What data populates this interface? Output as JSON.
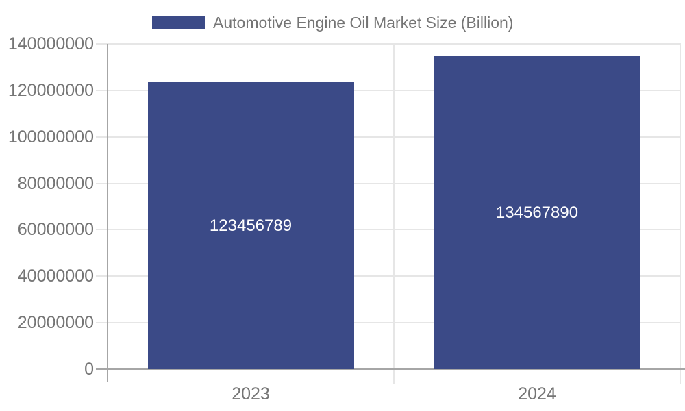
{
  "chart_data": {
    "type": "bar",
    "title": "",
    "legend": {
      "position": "top",
      "label": "Automotive Engine Oil Market Size (Billion)"
    },
    "categories": [
      "2023",
      "2024"
    ],
    "series": [
      {
        "name": "Automotive Engine Oil Market Size (Billion)",
        "values": [
          123456789,
          134567890
        ],
        "color": "#3b4a87"
      }
    ],
    "data_labels": [
      "123456789",
      "134567890"
    ],
    "x_axis": {
      "tick_labels": [
        "2023",
        "2024"
      ]
    },
    "y_axis": {
      "min": 0,
      "max": 140000000,
      "tick_step": 20000000,
      "tick_values": [
        0,
        20000000,
        40000000,
        60000000,
        80000000,
        100000000,
        120000000,
        140000000
      ],
      "tick_labels": [
        "0",
        "20000000",
        "40000000",
        "60000000",
        "80000000",
        "100000000",
        "120000000",
        "140000000"
      ]
    },
    "grid": true,
    "colors": {
      "bar": "#3b4a87",
      "grid": "#e6e6e6",
      "axis": "#a6a6a6",
      "tick_label": "#757575",
      "data_label": "#ffffff",
      "background": "#ffffff"
    }
  }
}
